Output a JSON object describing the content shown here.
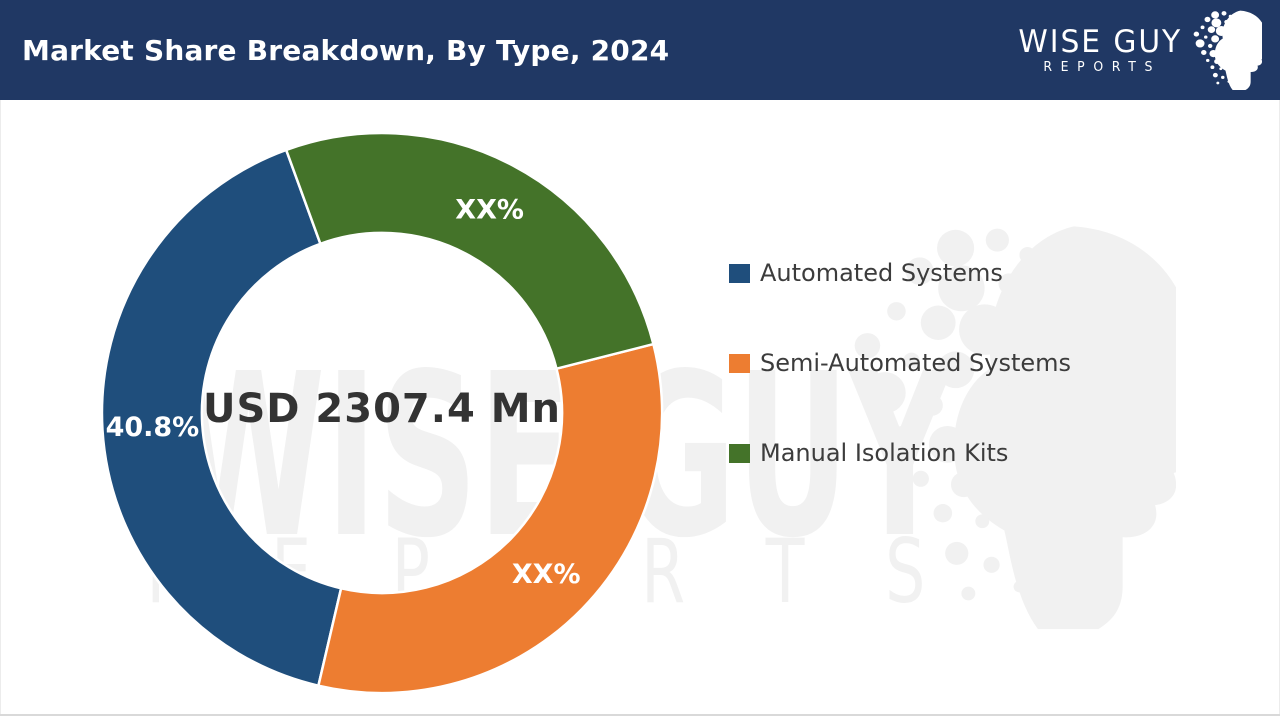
{
  "header": {
    "title": "Market Share Breakdown, By Type, 2024",
    "logo": {
      "line1": "WISE GUY",
      "line2": "REPORTS"
    }
  },
  "watermark": {
    "line1": "WISE GUY",
    "line2": "R E P O R T S"
  },
  "chart_data": {
    "type": "pie",
    "subtype": "donut",
    "title": "Market Share Breakdown, By Type, 2024",
    "center_label": "USD 2307.4 Mn",
    "start_angle_deg": 110,
    "direction": "counterclockwise",
    "inner_radius_ratio": 0.643,
    "legend_position": "right",
    "slices": [
      {
        "label": "Automated Systems",
        "value": 40.8,
        "display_label": "40.8%",
        "color": "#1f4e7c"
      },
      {
        "label": "Semi-Automated Systems",
        "value": 32.6,
        "display_label": "XX%",
        "color": "#ed7d31"
      },
      {
        "label": "Manual Isolation Kits",
        "value": 26.6,
        "display_label": "XX%",
        "color": "#447329"
      }
    ]
  },
  "legend": {
    "items": [
      {
        "label": "Automated Systems"
      },
      {
        "label": "Semi-Automated Systems"
      },
      {
        "label": "Manual Isolation Kits"
      }
    ]
  },
  "colors": {
    "header_bg": "#203864",
    "title_text": "#ffffff",
    "center_text": "#333333",
    "legend_text": "#3c3c3c",
    "watermark": "#f1f1f1",
    "separator": "#ffffff"
  }
}
